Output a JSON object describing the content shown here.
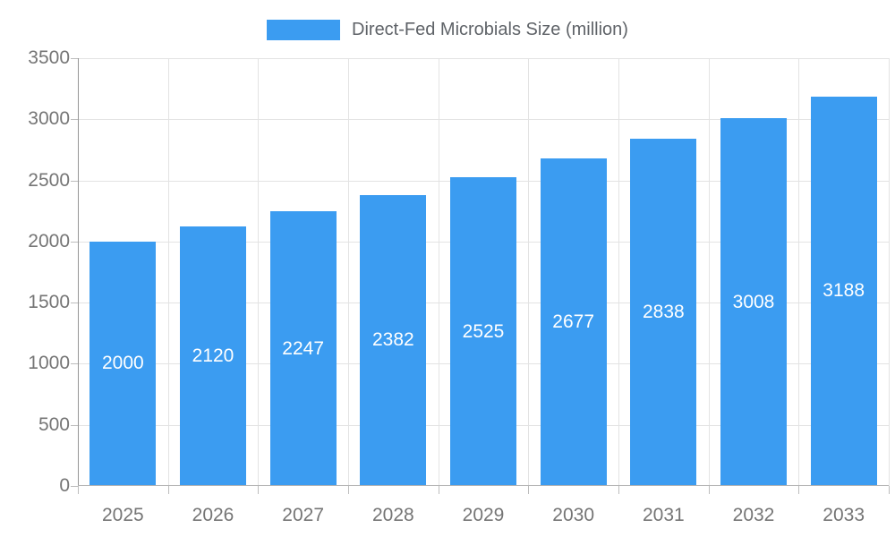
{
  "legend": {
    "label": "Direct-Fed Microbials Size (million)"
  },
  "chart_data": {
    "type": "bar",
    "title": "Direct-Fed Microbials Size (million)",
    "series_name": "Direct-Fed Microbials Size (million)",
    "categories": [
      "2025",
      "2026",
      "2027",
      "2028",
      "2029",
      "2030",
      "2031",
      "2032",
      "2033"
    ],
    "values": [
      2000,
      2120,
      2247,
      2382,
      2525,
      2677,
      2838,
      3008,
      3188
    ],
    "value_label_position": "inside-center",
    "xlabel": "",
    "ylabel": "",
    "ylim": [
      0,
      3500
    ],
    "ytick_interval": 500,
    "ytick_labels": [
      "0",
      "500",
      "1000",
      "1500",
      "2000",
      "2500",
      "3000",
      "3500"
    ],
    "grid": true,
    "legend_position": "top-center",
    "colors": {
      "bar": "#3B9CF1",
      "value_label": "#FFFFFF",
      "grid_line": "#E3E3E3",
      "y_axis_line": "#969696",
      "x_axis_line": "#B3B3B3",
      "tick_line": "#BDBDBD",
      "axis_label": "#757575",
      "legend_text": "#5F6368",
      "background": "#FFFFFF"
    }
  }
}
